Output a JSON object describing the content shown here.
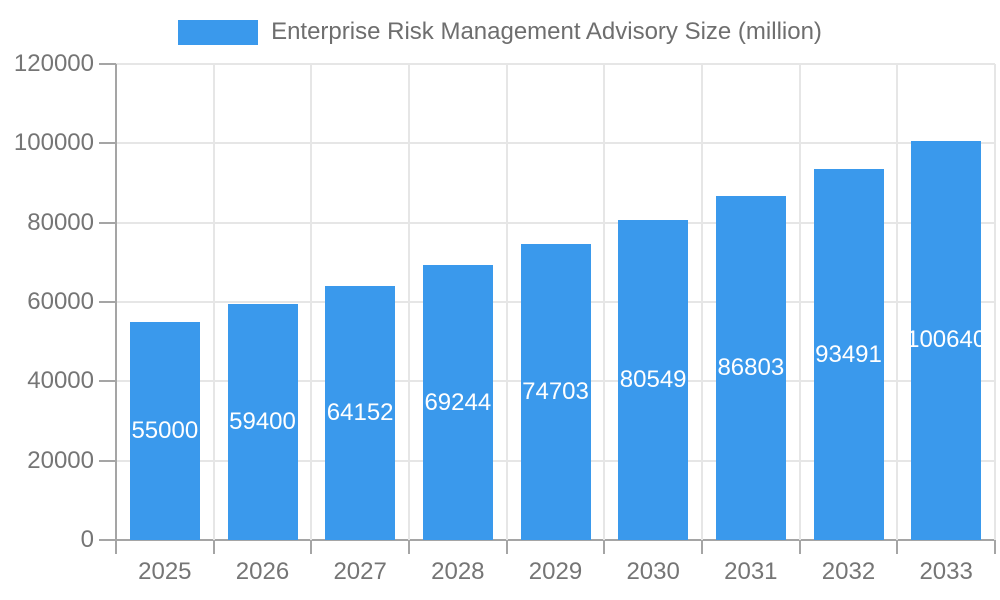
{
  "chart_data": {
    "type": "bar",
    "title": "Enterprise Risk Management Advisory Size (million)",
    "categories": [
      "2025",
      "2026",
      "2027",
      "2028",
      "2029",
      "2030",
      "2031",
      "2032",
      "2033"
    ],
    "series": [
      {
        "name": "Enterprise Risk Management Advisory Size (million)",
        "values": [
          55000,
          59400,
          64152,
          69244,
          74703,
          80549,
          86803,
          93491,
          100640
        ]
      }
    ],
    "data_labels_shown": [
      "55000",
      "59400",
      "64152",
      "69244",
      "74703",
      "80549",
      "86803",
      "93491",
      "100640"
    ],
    "xlabel": "",
    "ylabel": "",
    "ylim": [
      0,
      120000
    ],
    "yticks": [
      0,
      20000,
      40000,
      60000,
      80000,
      100000,
      120000
    ],
    "ytick_labels": [
      "0",
      "20000",
      "40000",
      "60000",
      "80000",
      "100000",
      "120000"
    ],
    "grid": true,
    "legend_position": "top",
    "colors": {
      "bar": "#3A99EC",
      "bar_label": "#FFFFFF",
      "axis_text": "#757575",
      "legend_text": "#6E6E6E",
      "grid_line": "#E6E6E6",
      "axis_line": "#A5A5A5",
      "background": "#FFFFFF"
    }
  }
}
